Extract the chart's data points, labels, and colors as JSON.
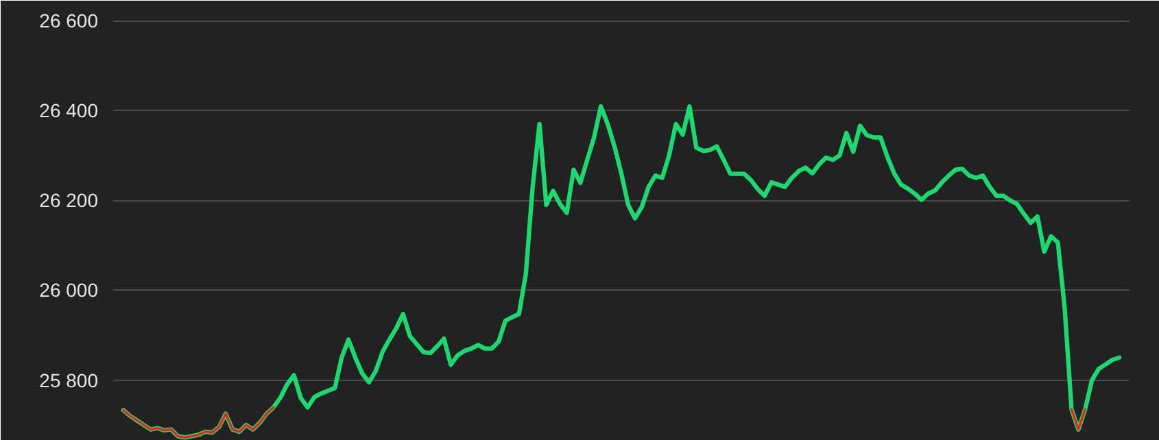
{
  "chart_data": {
    "type": "line",
    "categories": [
      null,
      null,
      null,
      null,
      null,
      null,
      null,
      null,
      null,
      null,
      null,
      null,
      null,
      null,
      null,
      null,
      null,
      null,
      null,
      null,
      null,
      null,
      null,
      null,
      null,
      null,
      null,
      null,
      null,
      null,
      null,
      null,
      null,
      null,
      null,
      null,
      null,
      null,
      null,
      null,
      null,
      null,
      null,
      null,
      null,
      null,
      null,
      null,
      null,
      null,
      null,
      null,
      null,
      null,
      null,
      null,
      null,
      null,
      null,
      null,
      null,
      null,
      null,
      null,
      null,
      null,
      null,
      null,
      null,
      null,
      null,
      null,
      null,
      null,
      null,
      null,
      null,
      null,
      null,
      null,
      null,
      null,
      null,
      null,
      null,
      null,
      null,
      null,
      null,
      null,
      null,
      null,
      null,
      null,
      null,
      null,
      null,
      null,
      null,
      null,
      null,
      null,
      null,
      null,
      null,
      null,
      null,
      null,
      null,
      null,
      null,
      null,
      null,
      null,
      null,
      null,
      null,
      null,
      null,
      null,
      null,
      null,
      null,
      null,
      null,
      null,
      null,
      null,
      null,
      null,
      null,
      null,
      null,
      null,
      null,
      null,
      null,
      null,
      null,
      null,
      null,
      null,
      null,
      null,
      null,
      null,
      null
    ],
    "series": [
      {
        "color": "#ff1a1a",
        "values": [
          25733,
          25720,
          25710,
          25700,
          25690,
          25693,
          25688,
          25690,
          25675,
          25672,
          25675,
          25678,
          25685,
          25683,
          25695,
          25725,
          25690,
          25685,
          25700,
          25690,
          25705,
          25725,
          25739,
          null,
          null,
          null,
          null,
          null,
          null,
          null,
          null,
          null,
          null,
          null,
          null,
          null,
          null,
          null,
          null,
          null,
          null,
          null,
          null,
          null,
          null,
          null,
          null,
          null,
          null,
          null,
          null,
          null,
          null,
          null,
          null,
          null,
          null,
          null,
          null,
          null,
          null,
          null,
          null,
          null,
          null,
          null,
          null,
          null,
          null,
          null,
          null,
          null,
          null,
          null,
          null,
          null,
          null,
          null,
          null,
          null,
          null,
          null,
          null,
          null,
          null,
          null,
          null,
          null,
          null,
          null,
          null,
          null,
          null,
          null,
          null,
          null,
          null,
          null,
          null,
          null,
          null,
          null,
          null,
          null,
          null,
          null,
          null,
          null,
          null,
          null,
          null,
          null,
          null,
          null,
          null,
          null,
          null,
          null,
          null,
          null,
          null,
          null,
          null,
          null,
          null,
          null,
          null,
          null,
          null,
          null,
          null,
          null,
          null,
          null,
          null,
          null,
          null,
          null,
          null,
          25735,
          25690,
          25735,
          null,
          null,
          null,
          null,
          null
        ]
      },
      {
        "color": "#1ed771",
        "values": [
          25733,
          25720,
          25710,
          25700,
          25690,
          25693,
          25688,
          25690,
          25675,
          25672,
          25675,
          25678,
          25685,
          25683,
          25695,
          25725,
          25690,
          25685,
          25700,
          25690,
          25705,
          25725,
          25739,
          25760,
          25790,
          25811,
          25760,
          25739,
          25762,
          25770,
          25776,
          25782,
          25850,
          25890,
          25850,
          25815,
          25795,
          25820,
          25863,
          25890,
          25915,
          25947,
          25898,
          25880,
          25862,
          25860,
          25875,
          25892,
          25834,
          25855,
          25865,
          25870,
          25878,
          25870,
          25870,
          25885,
          25932,
          25940,
          25947,
          26036,
          26230,
          26370,
          26190,
          26221,
          26192,
          26172,
          26268,
          26239,
          26290,
          26340,
          26409,
          26370,
          26320,
          26260,
          26190,
          26160,
          26185,
          26230,
          26255,
          26250,
          26300,
          26370,
          26346,
          26409,
          26317,
          26310,
          26312,
          26320,
          26290,
          26259,
          26259,
          26259,
          26245,
          26225,
          26210,
          26240,
          26235,
          26230,
          26250,
          26265,
          26273,
          26260,
          26280,
          26295,
          26290,
          26300,
          26350,
          26308,
          26366,
          26345,
          26340,
          26340,
          26297,
          26260,
          26235,
          26226,
          26215,
          26201,
          26215,
          26222,
          26240,
          26255,
          26268,
          26270,
          26255,
          26250,
          26255,
          26230,
          26210,
          26210,
          26200,
          26192,
          26170,
          26150,
          26164,
          26086,
          26120,
          26106,
          25960,
          25735,
          25690,
          25735,
          25800,
          25825,
          25835,
          25845,
          25850
        ]
      }
    ],
    "ylim": [
      25665,
      26620
    ],
    "yticks": [
      {
        "value": 25800,
        "label": "25 800"
      },
      {
        "value": 26000,
        "label": "26 000"
      },
      {
        "value": 26200,
        "label": "26 200"
      },
      {
        "value": 26400,
        "label": "26 400"
      },
      {
        "value": 26600,
        "label": "26 600"
      }
    ],
    "grid": "y",
    "tick_labels": "y"
  }
}
